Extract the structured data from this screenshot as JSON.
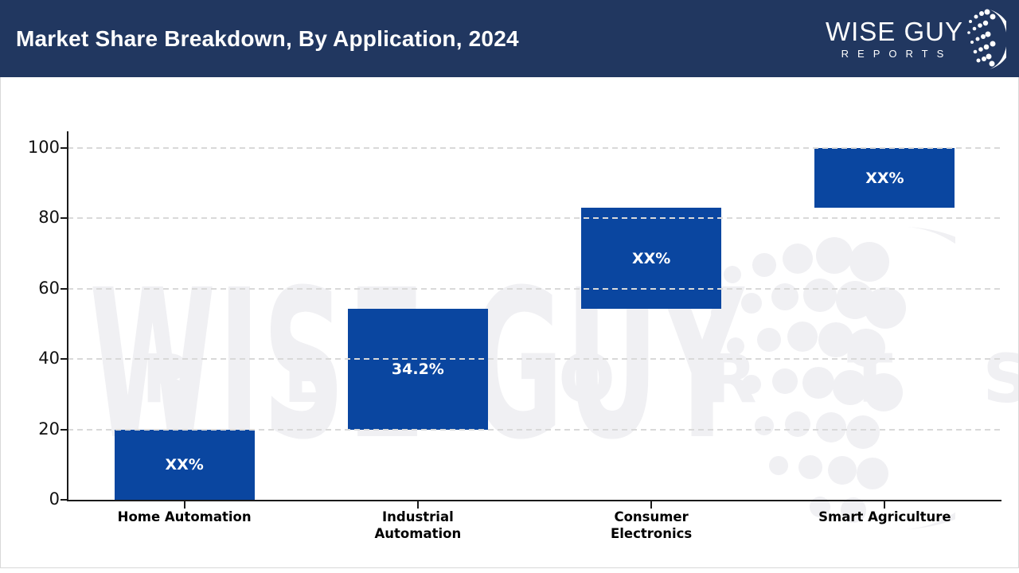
{
  "header": {
    "title": "Market Share Breakdown, By Application, 2024",
    "bg_color": "#213760",
    "logo": {
      "wordmark": "WISE GUY",
      "subtext": "REPORTS"
    }
  },
  "watermark": {
    "line1": "WISE GUY",
    "line2": "R E P O R T S"
  },
  "chart_data": {
    "type": "bar",
    "subtype": "waterfall",
    "title": "Market Share Breakdown, By Application, 2024",
    "categories": [
      "Home Automation",
      "Industrial Automation",
      "Consumer Electronics",
      "Smart Agriculture"
    ],
    "tick_label_lines": [
      [
        "Home Automation"
      ],
      [
        "Industrial",
        "Automation"
      ],
      [
        "Consumer",
        "Electronics"
      ],
      [
        "Smart Agriculture"
      ]
    ],
    "bars": [
      {
        "category": "Home Automation",
        "start": 0,
        "end": 20,
        "value": 20,
        "label": "XX%"
      },
      {
        "category": "Industrial Automation",
        "start": 20,
        "end": 54.2,
        "value": 34.2,
        "label": "34.2%"
      },
      {
        "category": "Consumer Electronics",
        "start": 54.2,
        "end": 83,
        "value": 28.8,
        "label": "XX%"
      },
      {
        "category": "Smart Agriculture",
        "start": 83,
        "end": 100,
        "value": 17,
        "label": "XX%"
      }
    ],
    "ylim": [
      0,
      105
    ],
    "yticks": [
      0,
      20,
      40,
      60,
      80,
      100
    ],
    "grid": "horizontal-dashed",
    "legend": "none",
    "bar_color": "#0a46a0",
    "bar_label_color": "#ffffff",
    "axis_color": "#1a1a1a",
    "gridline_color": "#d9d9d9"
  }
}
